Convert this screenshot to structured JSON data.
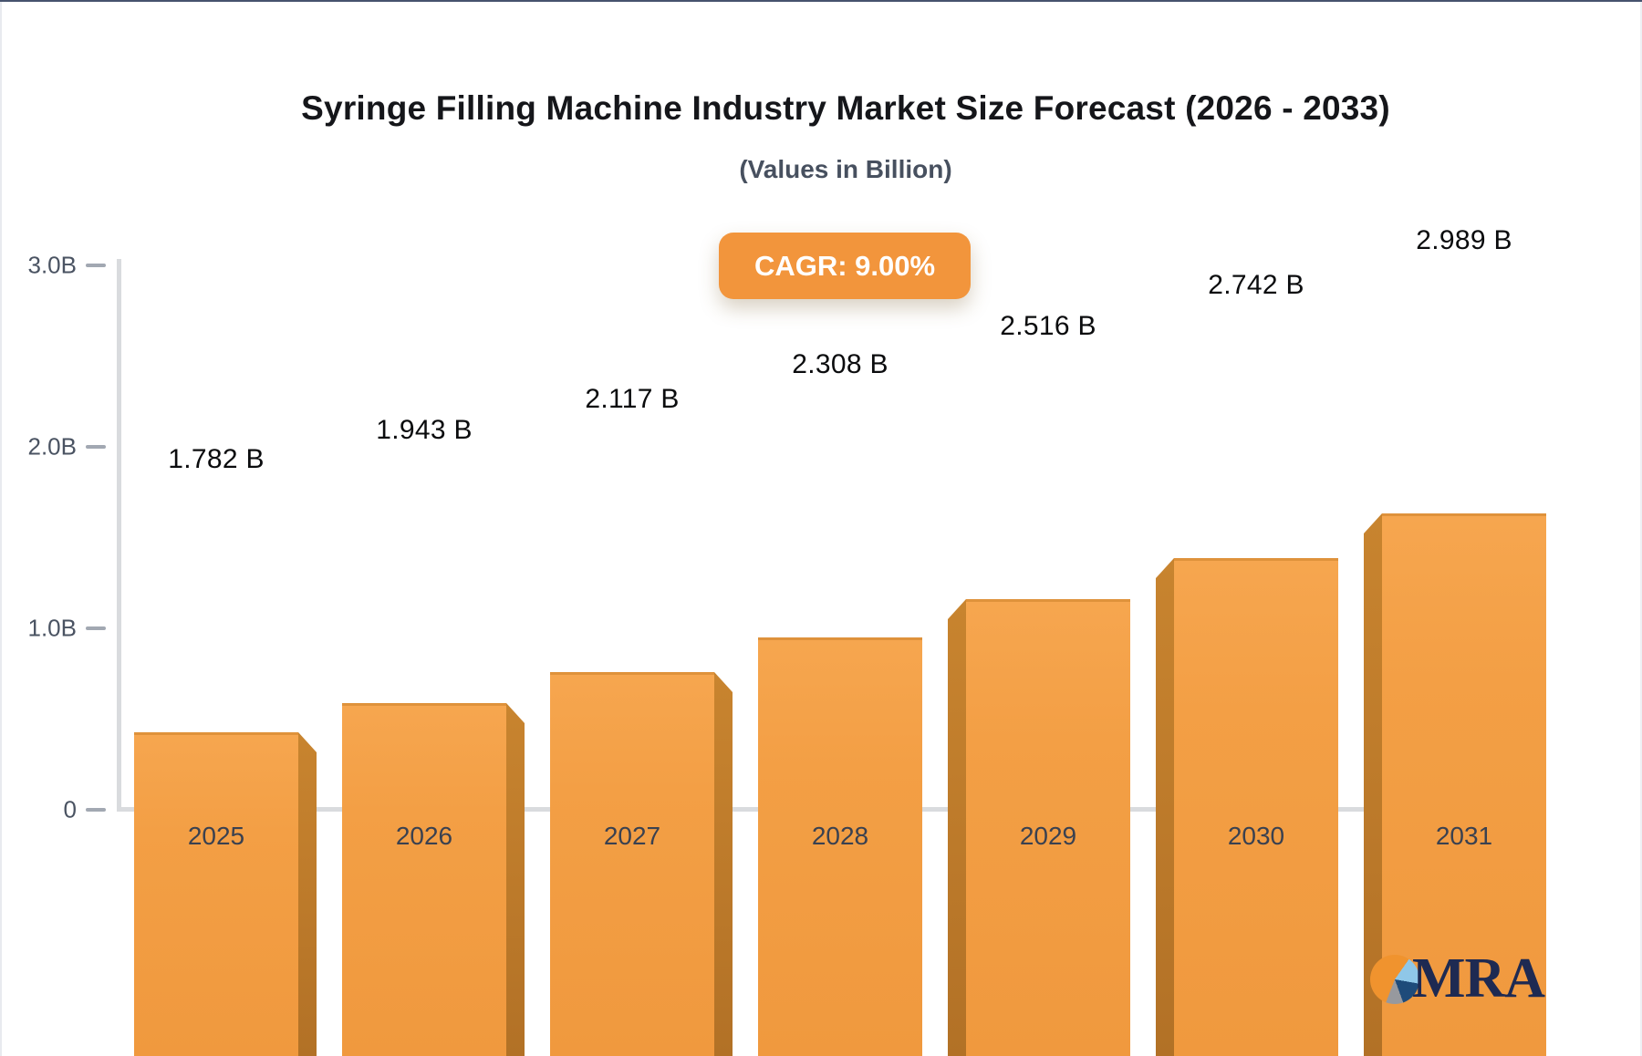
{
  "header": {
    "title": "Syringe Filling Machine Industry Market Size Forecast (2026 - 2033)",
    "subtitle": "(Values in Billion)"
  },
  "badge": {
    "label": "CAGR: 9.00%",
    "color": "#F2953C"
  },
  "chart_data": {
    "type": "bar",
    "title": "Syringe Filling Machine Industry Market Size Forecast (2026 - 2033)",
    "subtitle": "(Values in Billion)",
    "annotation": "CAGR: 9.00%",
    "categories": [
      "2025",
      "2026",
      "2027",
      "2028",
      "2029",
      "2030",
      "2031"
    ],
    "values": [
      1.782,
      1.943,
      2.117,
      2.308,
      2.516,
      2.742,
      2.989
    ],
    "value_labels": [
      "1.782 B",
      "1.943 B",
      "2.117 B",
      "2.308 B",
      "2.516 B",
      "2.742 B",
      "2.989 B"
    ],
    "y_ticks": [
      {
        "label": "0",
        "value": 0
      },
      {
        "label": "1.0B",
        "value": 1.0
      },
      {
        "label": "2.0B",
        "value": 2.0
      },
      {
        "label": "3.0B",
        "value": 3.0
      }
    ],
    "ylim": [
      0,
      3.0
    ],
    "xlabel": "",
    "ylabel": "",
    "grid": false,
    "legend": false,
    "bar_color_top": "#F6A64F",
    "bar_color_bottom": "#F0993E",
    "bar_side_color": "#B5762A",
    "axis_color": "#D9DBDE"
  },
  "footer": {
    "logo_text": "MRA",
    "logo_pie_colors": {
      "orange": "#F0932E",
      "light_blue": "#8FC7E8",
      "navy": "#1E4B7A",
      "gray": "#97999E"
    }
  }
}
